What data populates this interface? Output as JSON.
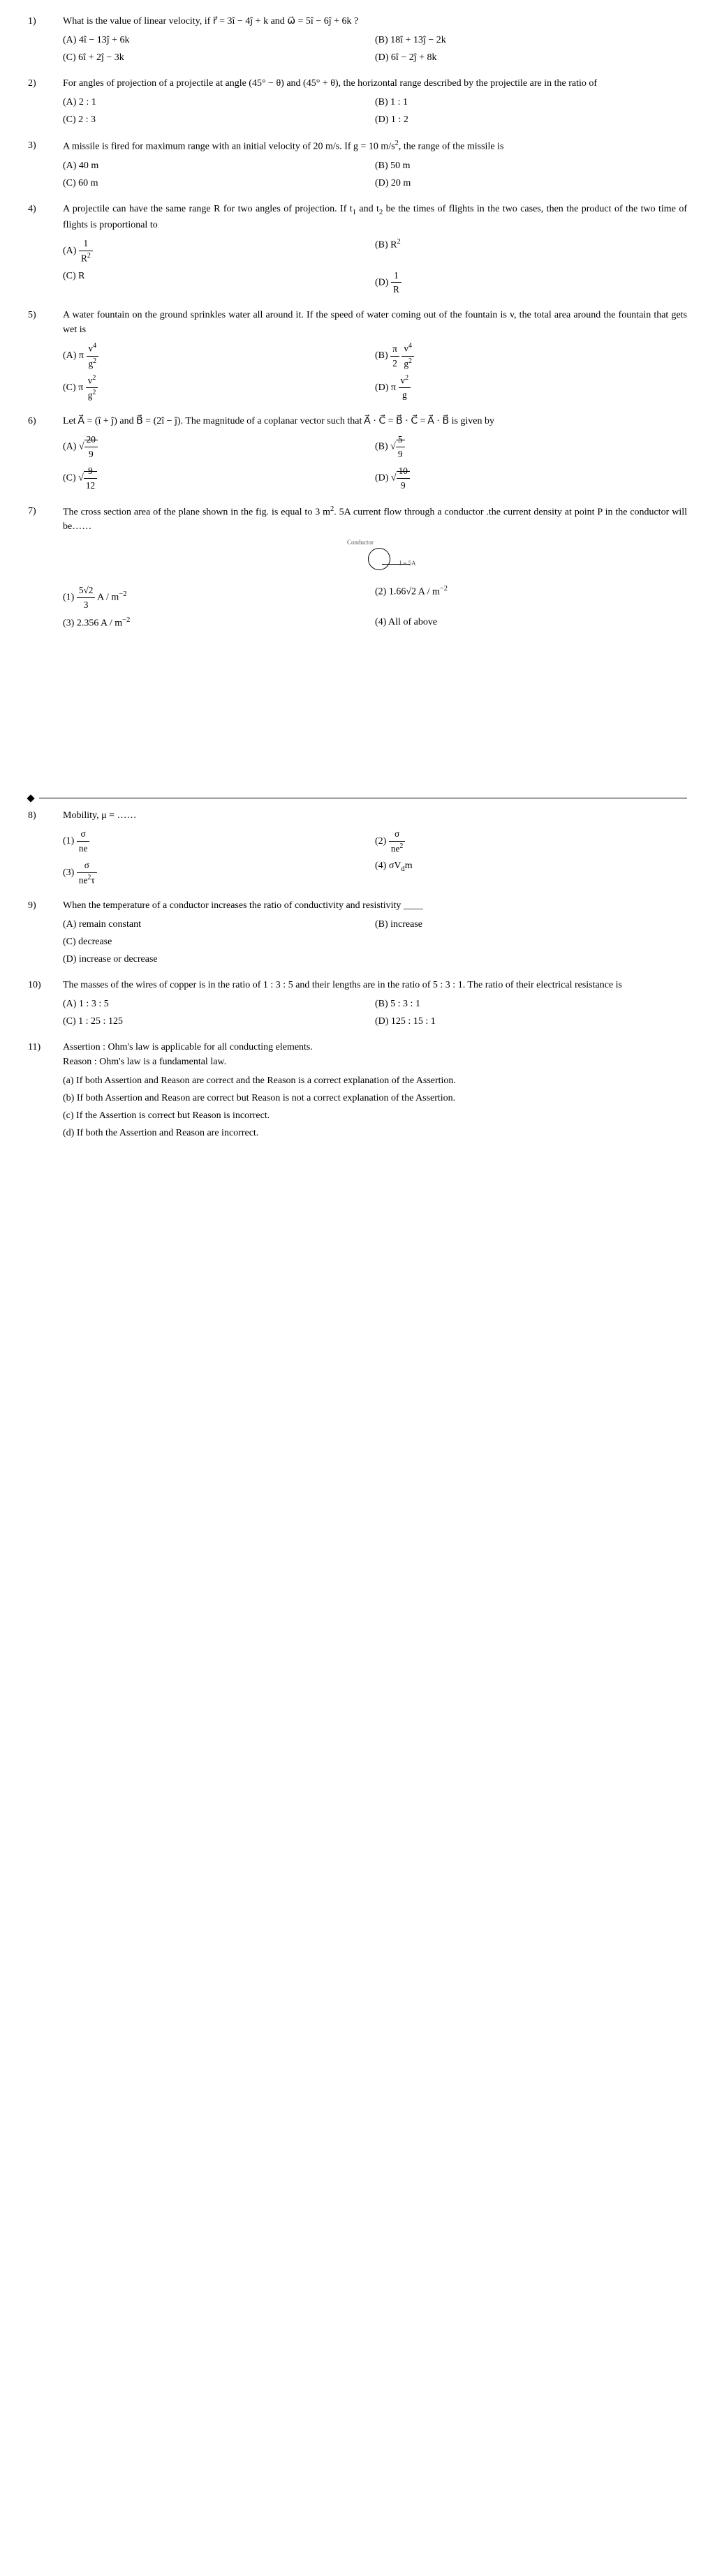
{
  "questions": [
    {
      "num": "1)",
      "text": "What is the value of linear velocity, if <span class='math'>r⃗ = 3î − 4ĵ + k</span> and <span class='math'>ω⃗ = 5î − 6ĵ + 6k</span> ?",
      "opts": [
        {
          "label": "(A) 4î − 13ĵ + 6k",
          "w": "half"
        },
        {
          "label": "(B) 18î + 13ĵ − 2k",
          "w": "half"
        },
        {
          "label": "(C) 6î + 2ĵ − 3k",
          "w": "half"
        },
        {
          "label": "(D) 6î − 2ĵ + 8k",
          "w": "half"
        }
      ]
    },
    {
      "num": "2)",
      "text": "For angles of projection of a projectile at angle (45° − θ) and (45° + θ), the horizontal range described by the projectile are in the ratio of",
      "opts": [
        {
          "label": "(A) 2 : 1",
          "w": "half"
        },
        {
          "label": "(B) 1 : 1",
          "w": "half"
        },
        {
          "label": "(C) 2 : 3",
          "w": "half"
        },
        {
          "label": "(D) 1 : 2",
          "w": "half"
        }
      ]
    },
    {
      "num": "3)",
      "text": "A missile is fired for maximum range with an initial velocity of 20 m/s. If g = 10 m/s<sup>2</sup>, the range of the missile is",
      "opts": [
        {
          "label": "(A) 40 m",
          "w": "half"
        },
        {
          "label": "(B) 50 m",
          "w": "half"
        },
        {
          "label": "(C) 60 m",
          "w": "half"
        },
        {
          "label": "(D) 20 m",
          "w": "half"
        }
      ]
    },
    {
      "num": "4)",
      "text": "A projectile can have the same range R for two angles of projection. If t<sub>1</sub> and t<sub>2</sub> be the times of flights in the two cases, then the product of the two time of flights is proportional to",
      "opts": [
        {
          "label": "(A) <span class='frac'><span class='num'>1</span><span class='den'>R<sup>2</sup></span></span>",
          "w": "half"
        },
        {
          "label": "(B) R<sup>2</sup>",
          "w": "half"
        },
        {
          "label": "(C) R",
          "w": "half"
        },
        {
          "label": "(D) <span class='frac'><span class='num'>1</span><span class='den'>R</span></span>",
          "w": "half"
        }
      ]
    },
    {
      "num": "5)",
      "text": "A water fountain on the ground sprinkles water all around it. If the speed of water coming out of the fountain is v, the total area around the fountain that gets wet is",
      "opts": [
        {
          "label": "(A) π <span class='frac'><span class='num'>v<sup>4</sup></span><span class='den'>g<sup>2</sup></span></span>",
          "w": "half"
        },
        {
          "label": "(B) <span class='frac'><span class='num'>π</span><span class='den'>2</span></span> <span class='frac'><span class='num'>v<sup>4</sup></span><span class='den'>g<sup>2</sup></span></span>",
          "w": "half"
        },
        {
          "label": "(C) π <span class='frac'><span class='num'>v<sup>2</sup></span><span class='den'>g<sup>2</sup></span></span>",
          "w": "half"
        },
        {
          "label": "(D) π <span class='frac'><span class='num'>v<sup>2</sup></span><span class='den'>g</span></span>",
          "w": "half"
        }
      ]
    },
    {
      "num": "6)",
      "text": "Let <span class='math'>A⃗ = (î + ĵ)</span> and <span class='math'>B⃗ = (2î − ĵ)</span>. The magnitude of a coplanar vector such that <span class='math'>A⃗ · C⃗ = B⃗ · C⃗ = A⃗ · B⃗</span> is given by",
      "opts": [
        {
          "label": "(A) √<span class='sqrt'><span class='frac'><span class='num'>20</span><span class='den'>9</span></span></span>",
          "w": "half"
        },
        {
          "label": "(B) √<span class='sqrt'><span class='frac'><span class='num'>5</span><span class='den'>9</span></span></span>",
          "w": "half"
        },
        {
          "label": "(C) √<span class='sqrt'><span class='frac'><span class='num'>9</span><span class='den'>12</span></span></span>",
          "w": "half"
        },
        {
          "label": "(D) √<span class='sqrt'><span class='frac'><span class='num'>10</span><span class='den'>9</span></span></span>",
          "w": "half"
        }
      ]
    },
    {
      "num": "7)",
      "text": "The cross section area of the plane shown in the fig. is equal to 3 m<sup>2</sup>. 5A current flow through a conductor .the current density at point P in the conductor will be……",
      "figure": true,
      "opts": [
        {
          "label": "(1) <span class='frac'><span class='num'>5√2</span><span class='den'>3</span></span> A / m<sup>−2</sup>",
          "w": "half"
        },
        {
          "label": "(2) 1.66√2 A / m<sup>−2</sup>",
          "w": "half"
        },
        {
          "label": "(3) 2.356 A / m<sup>−2</sup>",
          "w": "half"
        },
        {
          "label": "(4) All of above",
          "w": "half"
        }
      ]
    }
  ],
  "questions2": [
    {
      "num": "8)",
      "text": "Mobility, μ = ……",
      "opts": [
        {
          "label": "(1) <span class='frac'><span class='num'>σ</span><span class='den'>ne</span></span>",
          "w": "half"
        },
        {
          "label": "(2) <span class='frac'><span class='num'>σ</span><span class='den'>ne<sup>2</sup></span></span>",
          "w": "half"
        },
        {
          "label": "(3) <span class='frac'><span class='num'>σ</span><span class='den'>ne<sup>2</sup>τ</span></span>",
          "w": "half"
        },
        {
          "label": "(4) σV<sub>d</sub>m",
          "w": "half"
        }
      ]
    },
    {
      "num": "9)",
      "text": "When the temperature of a conductor increases the ratio of conductivity and resistivity ____",
      "opts": [
        {
          "label": "(A) remain constant",
          "w": "half"
        },
        {
          "label": "(B) increase",
          "w": "half"
        },
        {
          "label": "(C) decrease",
          "w": "full"
        },
        {
          "label": "(D) increase or decrease",
          "w": "full"
        }
      ]
    },
    {
      "num": "10)",
      "text": "The masses of the wires of copper is in the ratio of 1 : 3 : 5 and their lengths are in the ratio of 5 : 3 : 1. The ratio of their electrical resistance is",
      "opts": [
        {
          "label": "(A) 1 : 3 : 5",
          "w": "half"
        },
        {
          "label": "(B) 5 : 3 : 1",
          "w": "half"
        },
        {
          "label": "(C) 1 : 25 : 125",
          "w": "half"
        },
        {
          "label": "(D) 125 : 15 : 1",
          "w": "half"
        }
      ]
    },
    {
      "num": "11)",
      "text": "Assertion : Ohm's law is applicable for all conducting elements.<br>Reason : Ohm's law is a fundamental law.",
      "opts": [
        {
          "label": "(a) If both Assertion and Reason are correct and the Reason is a correct explanation of the Assertion.",
          "w": "full"
        },
        {
          "label": "(b) If both Assertion and Reason are correct but Reason is not a correct explanation of the Assertion.",
          "w": "full"
        },
        {
          "label": "(c) If the Assertion is correct but Reason is incorrect.",
          "w": "full"
        },
        {
          "label": "(d) If both the Assertion and Reason are incorrect.",
          "w": "full"
        }
      ]
    }
  ],
  "fig": {
    "conductor_label": "Conductor",
    "current_label": "I = 5A"
  }
}
